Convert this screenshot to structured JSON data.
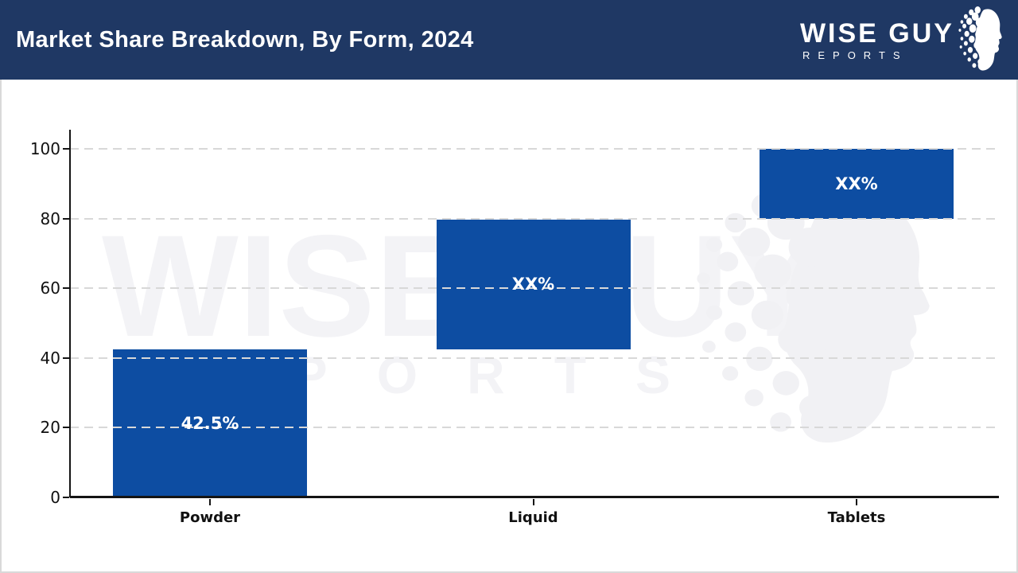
{
  "header": {
    "title": "Market Share Breakdown, By Form, 2024",
    "background_color": "#1f3864",
    "logo": {
      "wordmark": "WISE GUY",
      "subtext": "REPORTS"
    }
  },
  "watermark": {
    "line1": "WISE GUY",
    "line2": "REPORTS"
  },
  "chart_data": {
    "type": "bar",
    "subtype": "waterfall",
    "title": "Market Share Breakdown, By Form, 2024",
    "categories": [
      "Powder",
      "Liquid",
      "Tablets"
    ],
    "segments": [
      {
        "category": "Powder",
        "start": 0,
        "end": 42.5,
        "label": "42.5%"
      },
      {
        "category": "Liquid",
        "start": 42.5,
        "end": 79.8,
        "label": "XX%"
      },
      {
        "category": "Tablets",
        "start": 80,
        "end": 100,
        "label": "XX%"
      }
    ],
    "xlabel": "",
    "ylabel": "",
    "ylim": [
      0,
      100
    ],
    "yticks": [
      0,
      20,
      40,
      60,
      80,
      100
    ],
    "grid": "dashed-horizontal",
    "legend": "none",
    "bar_color": "#0d4da2",
    "label_color": "#ffffff",
    "axis_color": "#141414",
    "background_color": "#ffffff"
  }
}
